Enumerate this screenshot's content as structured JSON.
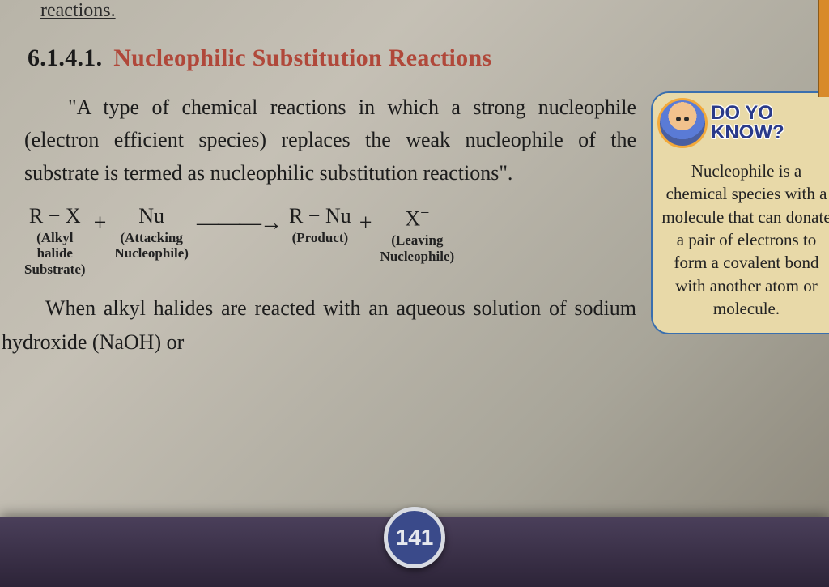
{
  "top_fragment": "reactions.",
  "heading": {
    "number": "6.1.4.1.",
    "title": "Nucleophilic Substitution Reactions",
    "num_color": "#1a1a1a",
    "title_color": "#b0483a",
    "fontsize": 30
  },
  "para1": "\"A type of chemical reactions in which a strong nucleophile (electron efficient species) replaces the weak nucleophile of the substrate is termed as nucleophilic substitution reactions\".",
  "equation": {
    "t1_top": "R − X",
    "t1_sub": "(Alkyl\nhalide\nSubstrate)",
    "op1": "+",
    "t2_top": "Nu",
    "t2_sub": "(Attacking\nNucleophile)",
    "arrow": "———→",
    "t3_top": "R − Nu",
    "t3_sub": "(Product)",
    "op2": "+",
    "t4_top": "X",
    "t4_super": "−",
    "t4_sub": "(Leaving\nNucleophile)"
  },
  "para2": "When alkyl halides are reacted with an aqueous solution of sodium hydroxide (NaOH) or",
  "sidebox": {
    "badge_line1": "DO YO",
    "badge_line2": "KNOW?",
    "body": "Nucleophile is a chemical species with a molecule that can donate a pair of electrons to form a covalent bond with another atom or molecule.",
    "bg_color": "#e8d9a8",
    "border_color": "#3a6fae"
  },
  "page_number": "141",
  "colors": {
    "page_bg_from": "#b8b4a8",
    "page_bg_to": "#8a8578",
    "bottom_bar": "#2d2438",
    "page_num_bg": "#3a4a8a",
    "page_num_ring": "#d8dbe2",
    "orange_edge": "#d88a2a"
  },
  "body_fontsize": 26,
  "sidebox_fontsize": 21
}
